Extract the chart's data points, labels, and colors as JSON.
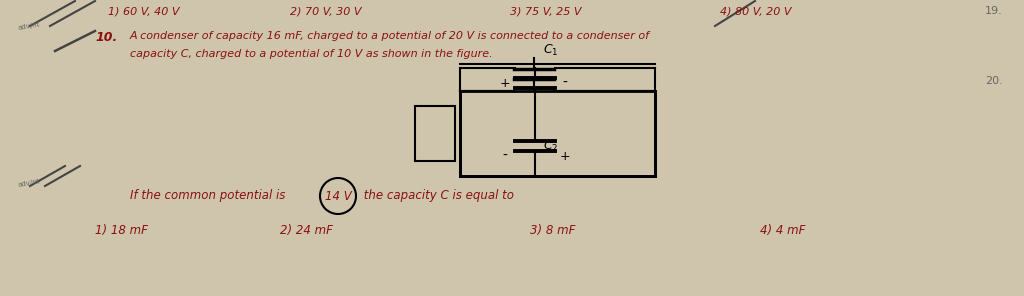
{
  "bg_color": "#cfc5ac",
  "text_color": "#8B1010",
  "dark_text": "#333333",
  "line_color": "#444444",
  "prev_line": "1) 60 V, 40 V       2) 70 V, 30 V                 3) 75 V, 25 V             4) 80 V, 20 V",
  "q_num": "10.",
  "q_text1": "A condenser of capacity 16 mF, charged to a potential of 20 V is connected to a condenser of",
  "q_text2": "capacity C, charged to a potential of 10 V as shown in the figure.",
  "answer_line1": "If the common potential is ",
  "circled": "14 V",
  "answer_line2": " the capacity C is equal to",
  "opt1": "1) 18 mF",
  "opt2": "2) 24 mF",
  "opt3": "3) 8 mF",
  "opt4": "4) 4 mF",
  "num19": "19.",
  "num20": "20."
}
